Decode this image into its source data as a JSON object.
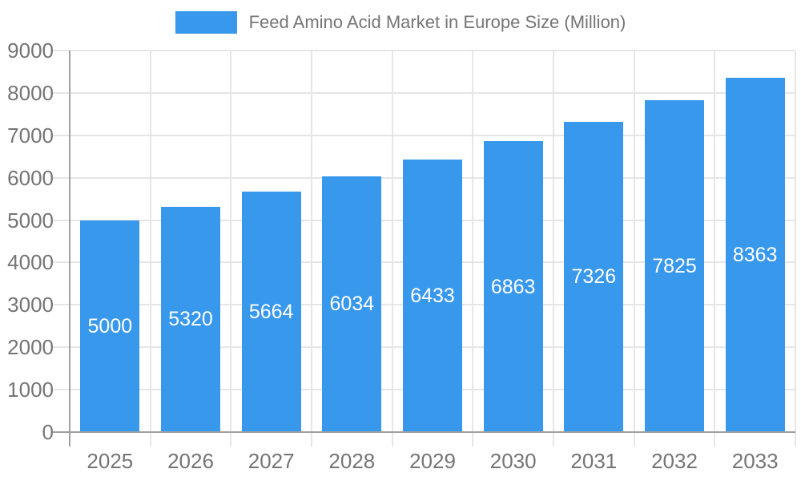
{
  "chart_data": {
    "type": "bar",
    "title": "Feed Amino Acid Market in Europe Size (Million)",
    "categories": [
      "2025",
      "2026",
      "2027",
      "2028",
      "2029",
      "2030",
      "2031",
      "2032",
      "2033"
    ],
    "values": [
      5000,
      5320,
      5664,
      6034,
      6433,
      6863,
      7326,
      7825,
      8363
    ],
    "xlabel": "",
    "ylabel": "",
    "ylim": [
      0,
      9000
    ],
    "ytick_step": 1000,
    "grid": true,
    "legend_position": "top",
    "bar_labels_inside": true,
    "colors": {
      "bar": "#3898ec",
      "bar_label_text": "#ffffff",
      "axis_text": "#757575",
      "axis_line": "#a0a0a0",
      "gridline": "#e6e6e6",
      "background": "#ffffff"
    }
  }
}
